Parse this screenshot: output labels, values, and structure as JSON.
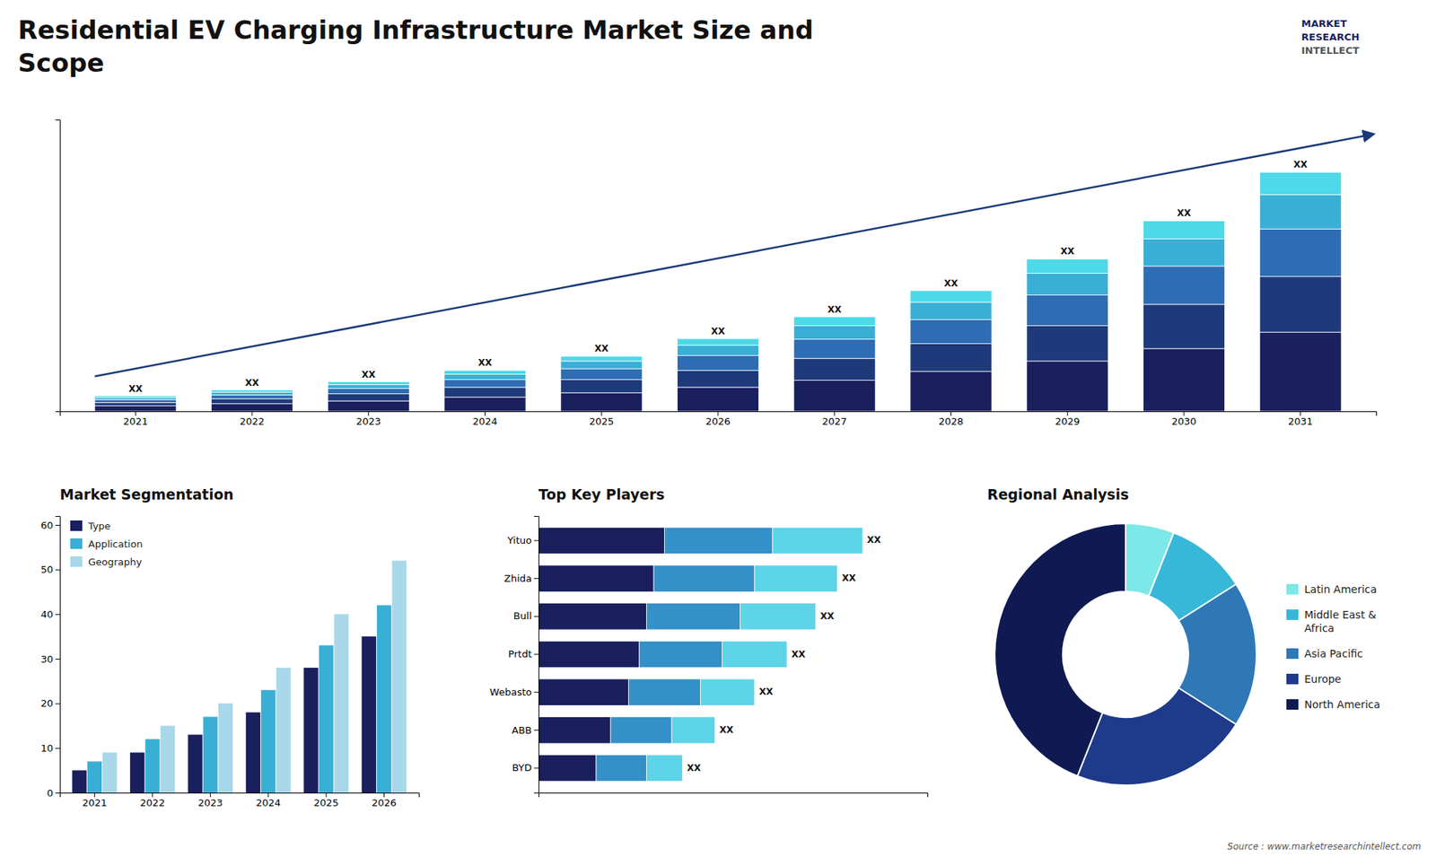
{
  "title": "Residential EV Charging Infrastructure Market Size and\nScope",
  "annotations": [
    "MARKET",
    "RESEARCH",
    "INTELLECT",
    "Source : www.marketresearchintellect.com"
  ],
  "chart_data": [
    {
      "type": "bar",
      "stacked": true,
      "grid": false,
      "tick_labels": "x",
      "categories": [
        "2021",
        "2022",
        "2023",
        "2024",
        "2025",
        "2026",
        "2027",
        "2028",
        "2029",
        "2030",
        "2031"
      ],
      "series": [
        {
          "color": "#1a1f5e",
          "values": [
            1.0,
            1.4,
            1.9,
            2.6,
            3.4,
            4.4,
            5.7,
            7.3,
            9.2,
            11.5,
            14.5
          ]
        },
        {
          "color": "#1e3a7a",
          "values": [
            0.6,
            0.9,
            1.3,
            1.8,
            2.4,
            3.1,
            4.0,
            5.1,
            6.5,
            8.1,
            10.2
          ]
        },
        {
          "color": "#2e6db4",
          "values": [
            0.5,
            0.7,
            1.0,
            1.4,
            2.0,
            2.7,
            3.5,
            4.4,
            5.6,
            7.0,
            8.7
          ]
        },
        {
          "color": "#3aafd6",
          "values": [
            0.4,
            0.5,
            0.7,
            1.0,
            1.4,
            1.9,
            2.5,
            3.2,
            4.0,
            5.0,
            6.3
          ]
        },
        {
          "color": "#4dd9e8",
          "values": [
            0.3,
            0.4,
            0.5,
            0.7,
            0.9,
            1.2,
            1.6,
            2.1,
            2.6,
            3.3,
            4.1
          ]
        }
      ],
      "annotations": [
        "XX",
        "XX",
        "XX",
        "XX",
        "XX",
        "XX",
        "XX",
        "XX",
        "XX",
        "XX",
        "XX"
      ],
      "ylim": [
        0,
        53.436
      ]
    },
    {
      "type": "bar",
      "title": "Market Segmentation",
      "grid": false,
      "legend": "upper left",
      "categories": [
        "2021",
        "2022",
        "2023",
        "2024",
        "2025",
        "2026"
      ],
      "series": [
        {
          "name": "Type",
          "color": "#1a1f5e",
          "values": [
            5,
            9,
            13,
            18,
            28,
            35
          ]
        },
        {
          "name": "Application",
          "color": "#3aafd6",
          "values": [
            7,
            12,
            17,
            23,
            33,
            42
          ]
        },
        {
          "name": "Geography",
          "color": "#a8d8ea",
          "values": [
            9,
            15,
            20,
            28,
            40,
            52
          ]
        }
      ],
      "ylim": [
        0,
        62
      ],
      "yticks": [
        0,
        10,
        20,
        30,
        40,
        50,
        60
      ]
    },
    {
      "type": "bar",
      "title": "Top Key Players",
      "orientation": "horizontal",
      "stacked": true,
      "grid": false,
      "tick_labels": "y",
      "categories": [
        "Yituo",
        "Zhida",
        "Bull",
        "Prtdt",
        "Webasto",
        "ABB",
        "BYD"
      ],
      "series": [
        {
          "color": "#1a1f5e",
          "values": [
            3.5,
            3.2,
            3.0,
            2.8,
            2.5,
            2.0,
            1.6
          ]
        },
        {
          "color": "#3490c8",
          "values": [
            3.0,
            2.8,
            2.6,
            2.3,
            2.0,
            1.7,
            1.4
          ]
        },
        {
          "color": "#5dd4e8",
          "values": [
            2.5,
            2.3,
            2.1,
            1.8,
            1.5,
            1.2,
            1.0
          ]
        }
      ],
      "annotations": [
        "XX",
        "XX",
        "XX",
        "XX",
        "XX",
        "XX",
        "XX"
      ],
      "xlim": [
        0,
        10.8
      ]
    },
    {
      "type": "pie",
      "title": "Regional Analysis",
      "legend": "right",
      "categories": [
        "Latin America",
        "Middle East &\nAfrica",
        "Asia Pacific",
        "Europe",
        "North America"
      ],
      "values": [
        6,
        10,
        18,
        22,
        44
      ],
      "colors": [
        "#7de8e8",
        "#38b8d8",
        "#2e78b8",
        "#1e3a8a",
        "#0f1a52"
      ]
    }
  ]
}
